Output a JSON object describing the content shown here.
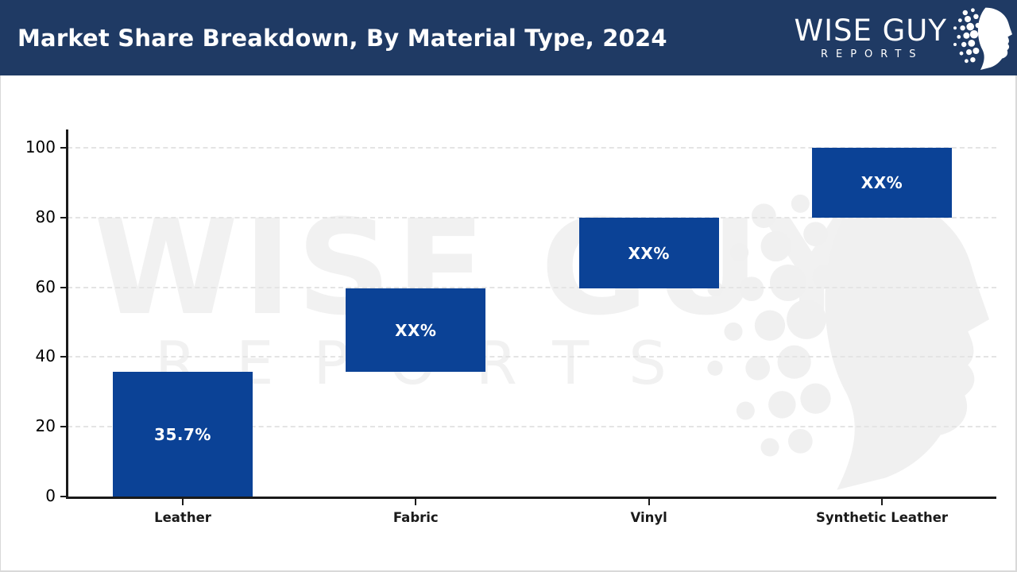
{
  "header": {
    "title": "Market Share Breakdown, By Material Type, 2024",
    "bg_color": "#1f3a64",
    "logo": {
      "wordmark": "WISE GUY",
      "subtitle": "REPORTS"
    }
  },
  "watermark": {
    "wordmark": "WISE GUY",
    "subtitle": "REPORTS"
  },
  "chart_data": {
    "type": "bar",
    "subtype": "waterfall",
    "title": "Market Share Breakdown, By Material Type, 2024",
    "categories": [
      "Leather",
      "Fabric",
      "Vinyl",
      "Synthetic Leather"
    ],
    "series": [
      {
        "name": "Market share (%)",
        "segments": [
          [
            0,
            35.7
          ],
          [
            35.7,
            59.6
          ],
          [
            59.6,
            79.9
          ],
          [
            79.9,
            100
          ]
        ],
        "bar_labels": [
          "35.7%",
          "XX%",
          "XX%",
          "XX%"
        ]
      }
    ],
    "xlabel": "",
    "ylabel": "",
    "yticks": [
      0,
      20,
      40,
      60,
      80,
      100
    ],
    "ylim": [
      0,
      105
    ],
    "grid": "horizontal-dashed",
    "legend": "none",
    "bar_color": "#0b4296",
    "bar_label_color": "#ffffff",
    "gridline_color": "#e4e4e4",
    "axis_color": "#1a1a1a"
  }
}
